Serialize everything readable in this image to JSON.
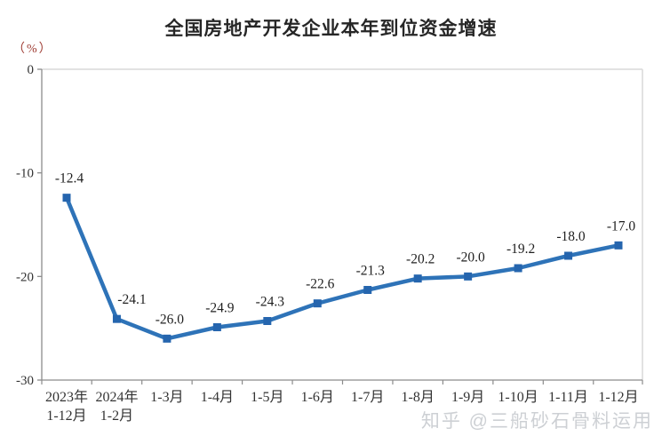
{
  "title": "全国房地产开发企业本年到位资金增速",
  "watermark": "知乎 @三船砂石骨料运用",
  "chart_data": {
    "type": "line",
    "title": "全国房地产开发企业本年到位资金增速",
    "ylabel": "（%）",
    "xlabel": "",
    "ylim": [
      -30,
      0
    ],
    "yticks": [
      0,
      -10,
      -20,
      -30
    ],
    "grid": false,
    "legend": "none",
    "categories": [
      [
        "2023年",
        "1-12月"
      ],
      [
        "2024年",
        "1-2月"
      ],
      [
        "1-3月"
      ],
      [
        "1-4月"
      ],
      [
        "1-5月"
      ],
      [
        "1-6月"
      ],
      [
        "1-7月"
      ],
      [
        "1-8月"
      ],
      [
        "1-9月"
      ],
      [
        "1-10月"
      ],
      [
        "1-11月"
      ],
      [
        "1-12月"
      ]
    ],
    "values": [
      -12.4,
      -24.1,
      -26.0,
      -24.9,
      -24.3,
      -22.6,
      -21.3,
      -20.2,
      -20.0,
      -19.2,
      -18.0,
      -17.0
    ],
    "colors": {
      "line": "#2e73b8",
      "marker": "#2565ae",
      "axis_dark": "#8c8c8c",
      "axis_light": "#d9d9d9",
      "tick_label": "#333333",
      "data_label": "#1f1f1f",
      "unit_label": "#9e3b32"
    }
  }
}
